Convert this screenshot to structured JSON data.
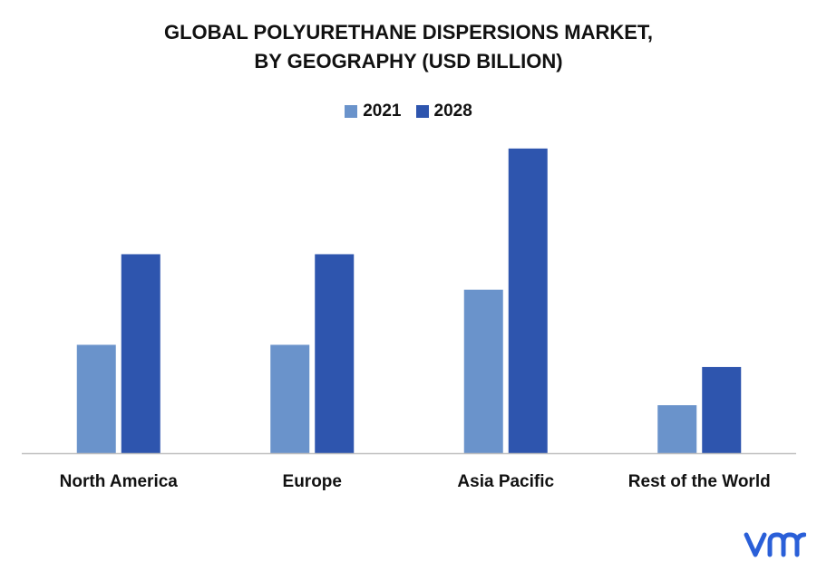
{
  "chart_data": {
    "type": "bar",
    "title_lines": [
      "GLOBAL POLYURETHANE DISPERSIONS MARKET,",
      "BY GEOGRAPHY (USD BILLION)"
    ],
    "categories": [
      "North America",
      "Europe",
      "Asia Pacific",
      "Rest of the World"
    ],
    "series": [
      {
        "name": "2021",
        "color": "#6a93cb",
        "values": [
          1.22,
          1.22,
          1.84,
          0.54
        ]
      },
      {
        "name": "2028",
        "color": "#2e55ae",
        "values": [
          2.24,
          2.24,
          3.43,
          0.97
        ]
      }
    ],
    "ylim": [
      0,
      3.5
    ],
    "grid": false,
    "legend_position": "top-center"
  },
  "logo": {
    "icon": "vmr-logo-icon",
    "color": "#2a5fd8"
  }
}
